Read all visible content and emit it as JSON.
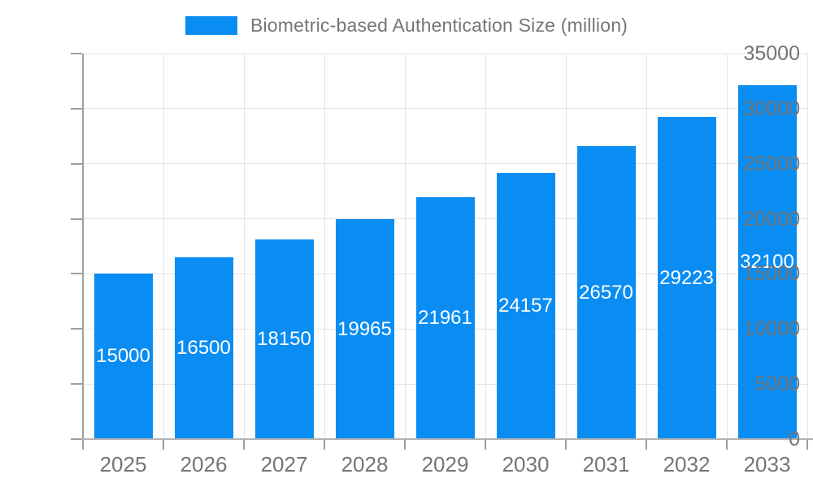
{
  "legend": {
    "label": "Biometric-based Authentication Size (million)",
    "swatch_color": "#0a8df2"
  },
  "chart_data": {
    "type": "bar",
    "title": "Biometric-based Authentication Size (million)",
    "categories": [
      "2025",
      "2026",
      "2027",
      "2028",
      "2029",
      "2030",
      "2031",
      "2032",
      "2033"
    ],
    "values": [
      15000,
      16500,
      18150,
      19965,
      21961,
      24157,
      26570,
      29223,
      32100
    ],
    "xlabel": "",
    "ylabel": "",
    "ylim": [
      0,
      35000
    ],
    "ytick_step": 5000,
    "ytick_labels": [
      "0",
      "5000",
      "10000",
      "15000",
      "20000",
      "25000",
      "30000",
      "35000"
    ],
    "grid": true,
    "legend_position": "top-center",
    "bar_color": "#0a8df2",
    "bar_label_color": "#ffffff",
    "bar_label_position": "inside-center",
    "axis_text_color": "#757575",
    "gridline_color": "#e4e4e4",
    "background_color": "#ffffff"
  }
}
